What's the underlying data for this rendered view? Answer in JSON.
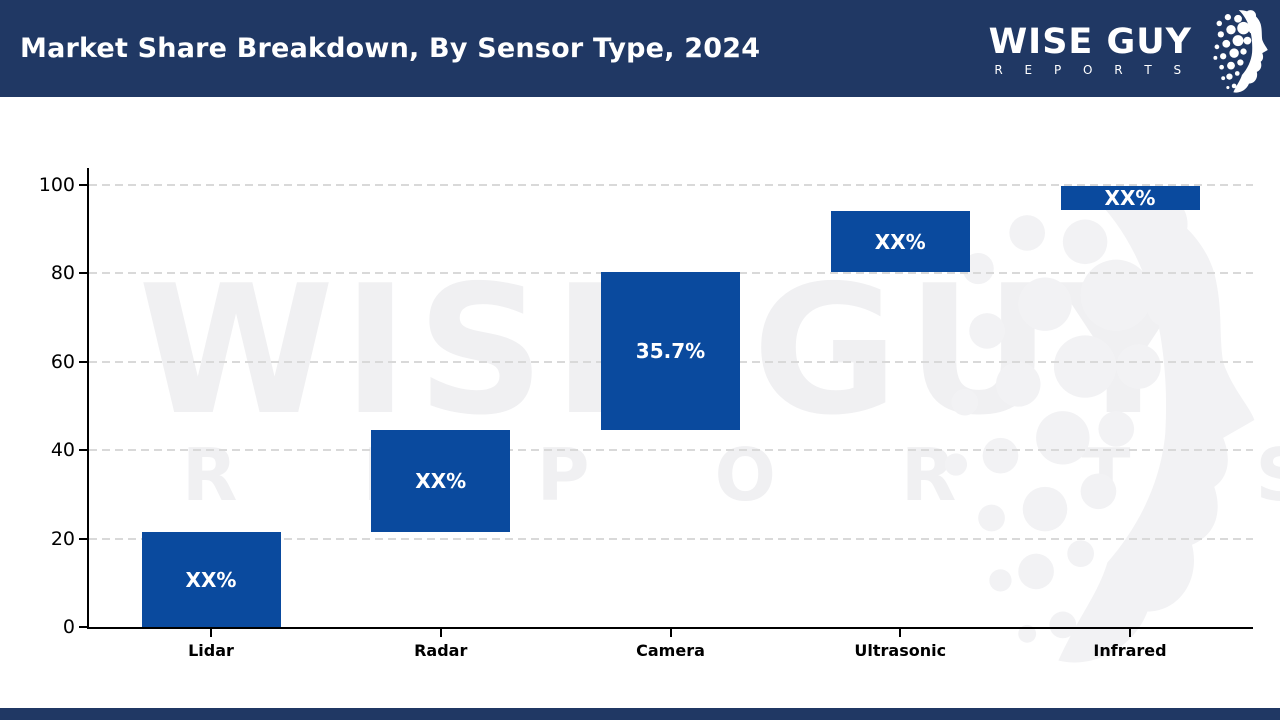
{
  "header": {
    "title": "Market Share Breakdown, By Sensor Type, 2024",
    "logo": {
      "line1": "WISE GUY",
      "line2": "R E P O R T S"
    }
  },
  "watermark": {
    "line1": "WISE GUY",
    "line2": "R E P O R T S"
  },
  "colors": {
    "header_bg": "#203864",
    "footer_bg": "#203864",
    "bar": "#0a4a9e",
    "grid": "#d9d9d9",
    "axis": "#000000",
    "title_text": "#ffffff",
    "bar_label_text": "#ffffff",
    "watermark": "#f0f0f2"
  },
  "chart_data": {
    "type": "bar",
    "subtype": "waterfall",
    "title": "Market Share Breakdown, By Sensor Type, 2024",
    "categories": [
      "Lidar",
      "Radar",
      "Camera",
      "Ultrasonic",
      "Infrared"
    ],
    "segments": [
      {
        "category": "Lidar",
        "start": 0,
        "end": 21.4,
        "label": "XX%"
      },
      {
        "category": "Radar",
        "start": 21.5,
        "end": 44.5,
        "label": "XX%"
      },
      {
        "category": "Camera",
        "start": 44.5,
        "end": 80.2,
        "label": "35.7%"
      },
      {
        "category": "Ultrasonic",
        "start": 80.2,
        "end": 94.1,
        "label": "XX%"
      },
      {
        "category": "Infrared",
        "start": 94.2,
        "end": 99.6,
        "label": "XX%"
      }
    ],
    "xlabel": "",
    "ylabel": "",
    "yticks": [
      0,
      20,
      40,
      60,
      80,
      100
    ],
    "ylim": [
      0,
      103.8
    ],
    "grid": true,
    "legend": "none"
  }
}
